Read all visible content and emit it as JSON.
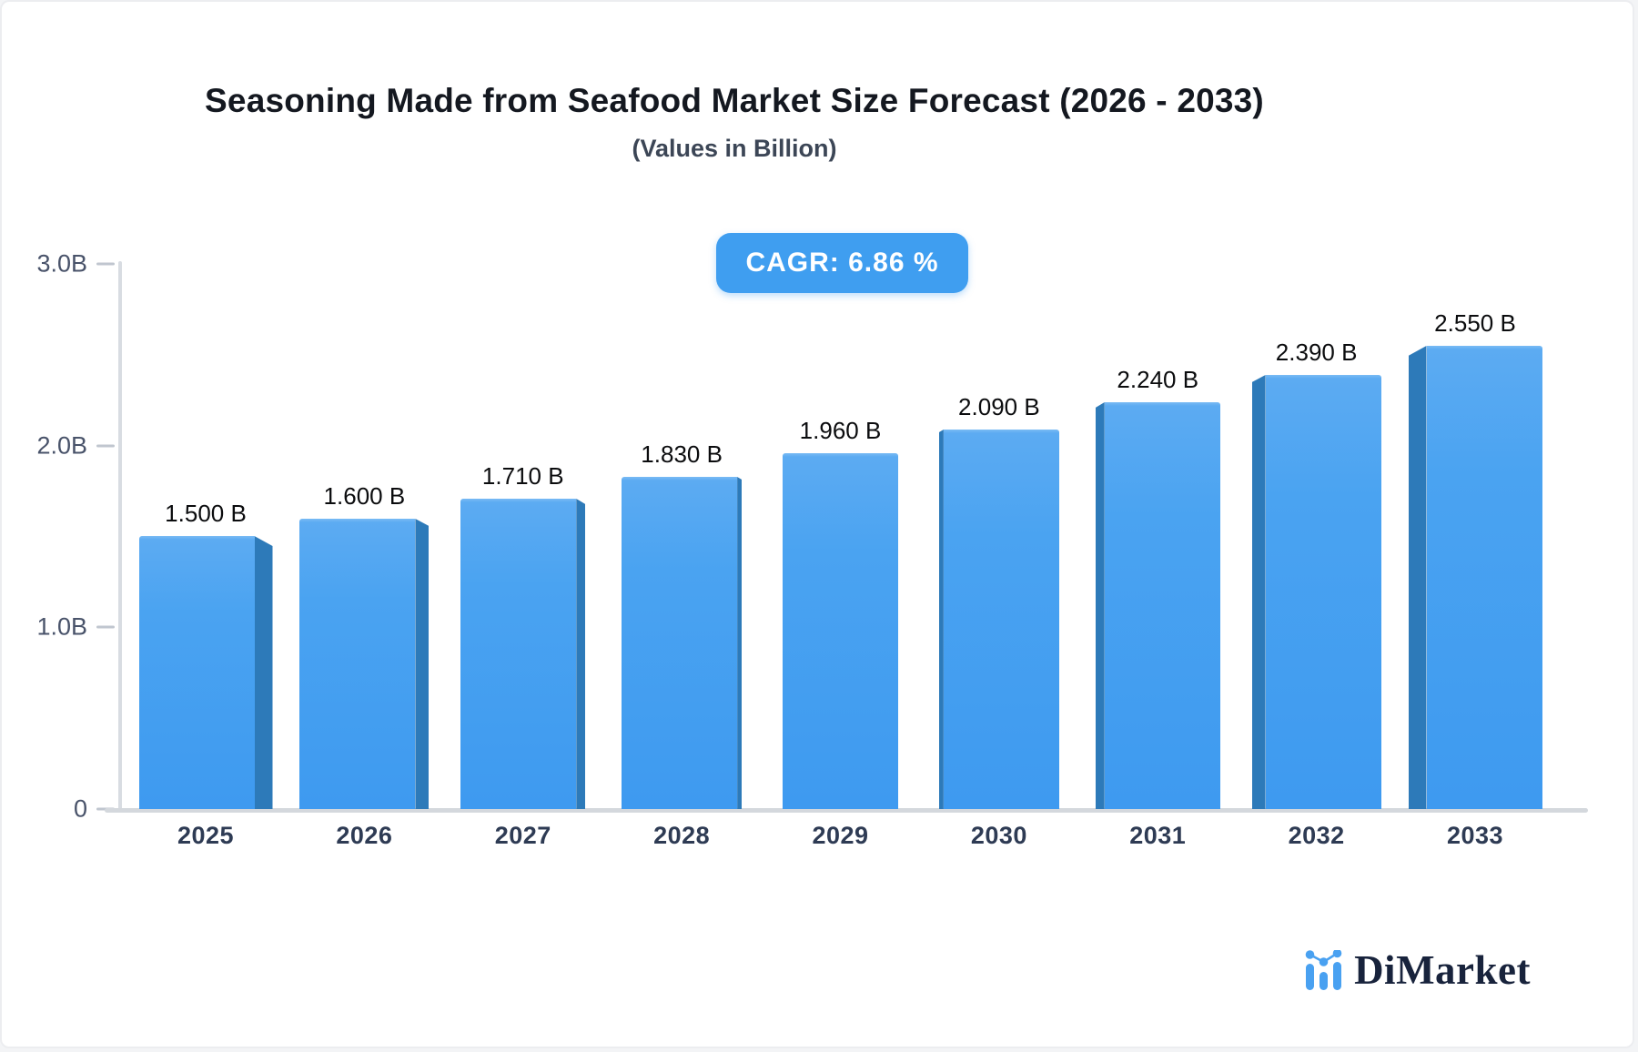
{
  "header": {
    "title": "Seasoning Made from Seafood Market Size Forecast (2026 - 2033)",
    "subtitle": "(Values in Billion)",
    "cagr_badge": "CAGR: 6.86 %",
    "badge_color": "#3f9ef0"
  },
  "chart_data": {
    "type": "bar",
    "title": "Seasoning Made from Seafood Market Size Forecast (2026 - 2033)",
    "subtitle": "(Values in Billion)",
    "cagr": "6.86 %",
    "unit": "Billion",
    "categories": [
      "2025",
      "2026",
      "2027",
      "2028",
      "2029",
      "2030",
      "2031",
      "2032",
      "2033"
    ],
    "values": [
      1.5,
      1.6,
      1.71,
      1.83,
      1.96,
      2.09,
      2.24,
      2.39,
      2.55
    ],
    "bar_labels": [
      "1.500 B",
      "1.600 B",
      "1.710 B",
      "1.830 B",
      "1.960 B",
      "2.090 B",
      "2.240 B",
      "2.390 B",
      "2.550 B"
    ],
    "ylim": [
      0,
      3
    ],
    "yticks": [
      {
        "label": "3.0B",
        "value": 3
      },
      {
        "label": "2.0B",
        "value": 2
      },
      {
        "label": "1.0B",
        "value": 1
      },
      {
        "label": "0",
        "value": 0
      }
    ],
    "grid": false,
    "legend": "none",
    "bar_color_top": "#5cabf2",
    "bar_color_bottom": "#3e9af0",
    "bar_side_color": "#2d7ab9"
  },
  "footer": {
    "brand": "DiMarket",
    "logo_color": "#49a1f1",
    "text_color": "#18233c"
  }
}
